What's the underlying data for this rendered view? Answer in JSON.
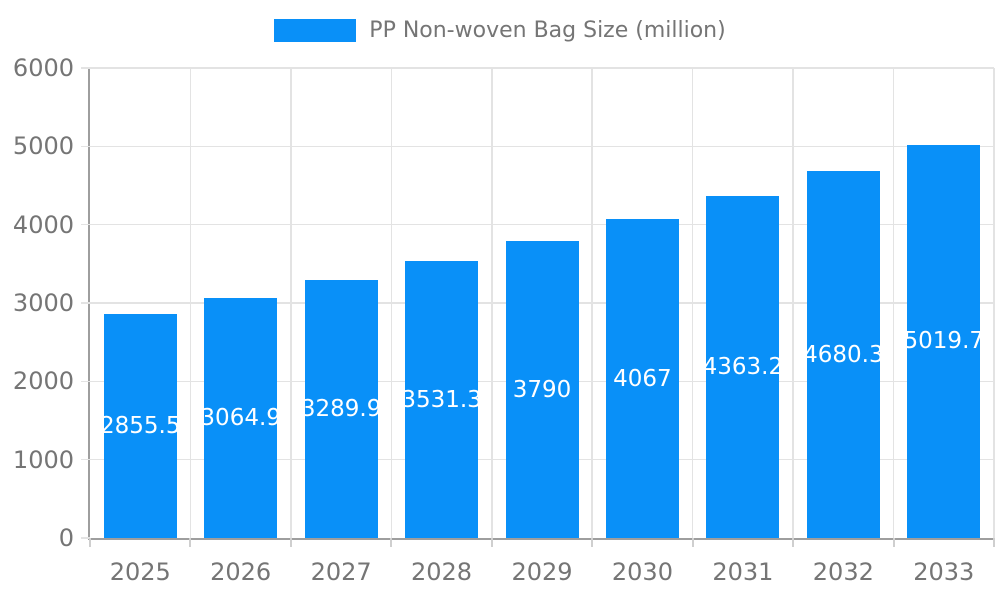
{
  "chart_data": {
    "type": "bar",
    "title": "PP Non-woven Bag Size (million)",
    "categories": [
      "2025",
      "2026",
      "2027",
      "2028",
      "2029",
      "2030",
      "2031",
      "2032",
      "2033"
    ],
    "series": [
      {
        "name": "PP Non-woven Bag Size (million)",
        "values": [
          2855.5,
          3064.9,
          3289.9,
          3531.3,
          3790,
          4067,
          4363.2,
          4680.3,
          5019.7
        ]
      }
    ],
    "data_labels": [
      "2855.5",
      "3064.9",
      "3289.9",
      "3531.3",
      "3790",
      "4067",
      "4363.2",
      "4680.3",
      "5019.7"
    ],
    "xlabel": "",
    "ylabel": "",
    "ylim": [
      0,
      6000
    ],
    "yticks": [
      0,
      1000,
      2000,
      3000,
      4000,
      5000,
      6000
    ],
    "grid": true,
    "legend_position": "top",
    "colors": {
      "bar": "#0990f8",
      "value_label": "#ffffff",
      "tick_label": "#757575",
      "grid_line": "#e3e3e3",
      "axis_line": "#9e9e9e",
      "tick_mark": "#cfcfcf",
      "background": "#ffffff"
    }
  },
  "legend": {
    "label": "PP Non-woven Bag Size (million)"
  }
}
